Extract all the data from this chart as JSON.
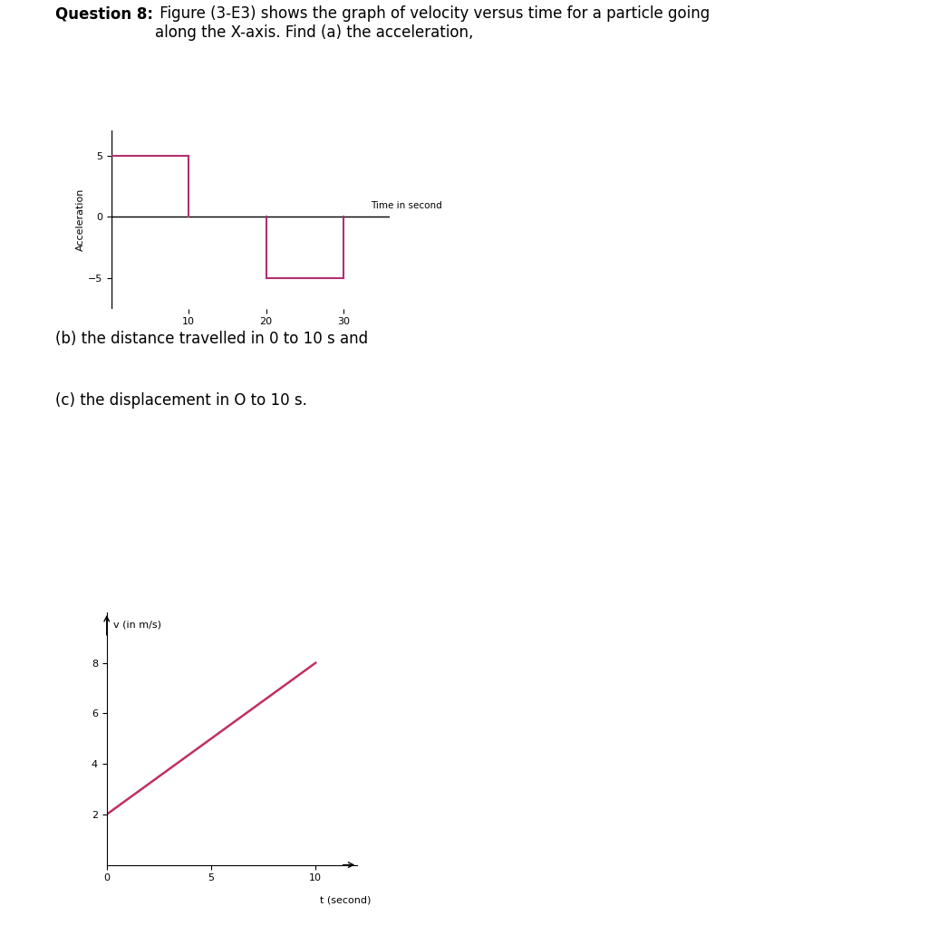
{
  "title_bold": "Question 8:",
  "title_normal": " Figure (3-E3) shows the graph of velocity versus time for a particle going\nalong the X-axis. Find (a) the acceleration,",
  "subtitle_b": "(b) the distance travelled in 0 to 10 s and",
  "subtitle_c": "(c) the displacement in O to 10 s.",
  "background_color": "#ffffff",
  "separator_color": "#dce3ea",
  "chart1": {
    "ylabel": "Acceleration",
    "xlabel": "Time in second",
    "xlim": [
      0,
      36
    ],
    "ylim": [
      -7.5,
      7
    ],
    "yticks": [
      -5.0,
      0,
      5.0
    ],
    "xticks": [
      10,
      20,
      30
    ],
    "line_color": "#b03070",
    "line_segments": [
      [
        0,
        5.0,
        10,
        5.0
      ],
      [
        10,
        5.0,
        10,
        0
      ],
      [
        20,
        0,
        20,
        -5.0
      ],
      [
        20,
        -5.0,
        30,
        -5.0
      ],
      [
        30,
        -5.0,
        30,
        0
      ]
    ]
  },
  "chart2": {
    "ylabel": "v (in m/s)",
    "xlabel": "t (second)",
    "xlim": [
      0,
      12
    ],
    "ylim": [
      0,
      10
    ],
    "yticks": [
      2,
      4,
      6,
      8
    ],
    "xticks": [
      0,
      5,
      10
    ],
    "line_color": "#c03060",
    "line_x": [
      0,
      10
    ],
    "line_y": [
      2,
      8
    ]
  }
}
